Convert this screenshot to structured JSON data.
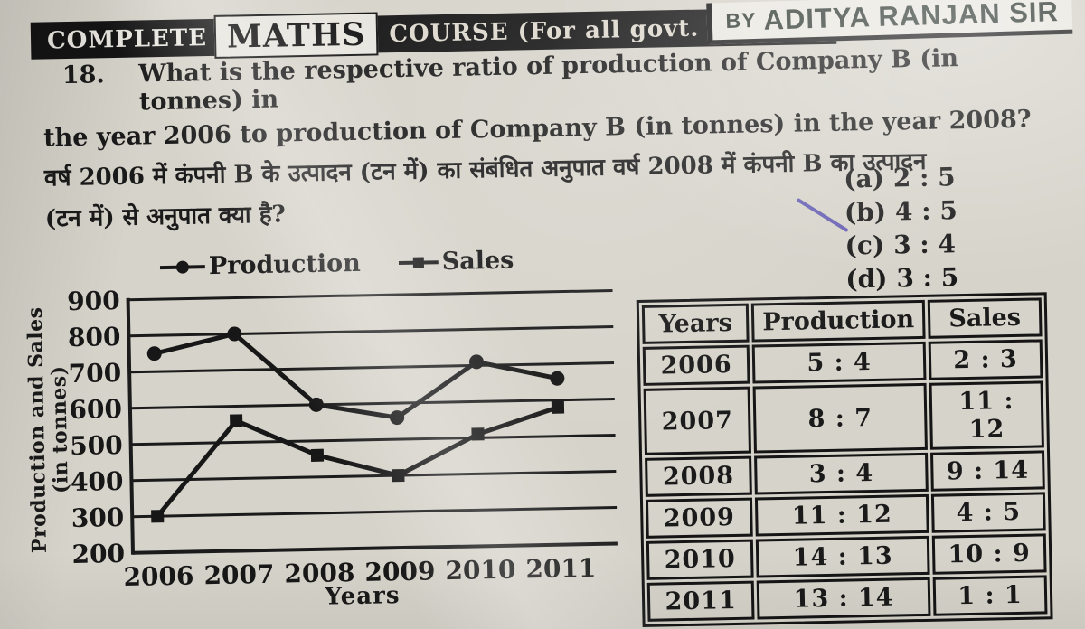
{
  "header": {
    "banner": {
      "segment1": "COMPLETE",
      "segment2": "MATHS",
      "segment3": "COURSE (For all govt. exams )"
    },
    "byline": {
      "prefix": "BY",
      "name": "ADITYA RANJAN SIR"
    }
  },
  "question": {
    "number": "18.",
    "english_line1": "What is the respective ratio of production of Company B (in tonnes) in",
    "english_line2": "the year 2006 to production of Company B (in tonnes) in the year 2008?",
    "hindi_line1": "वर्ष 2006 में कंपनी B के उत्पादन (टन में) का संबंधित अनुपात वर्ष 2008 में कंपनी B का उत्पादन",
    "hindi_line2": "(टन में) से अनुपात क्या है?"
  },
  "options": [
    {
      "label": "(a)",
      "value": "2 : 5"
    },
    {
      "label": "(b)",
      "value": "4 : 5"
    },
    {
      "label": "(c)",
      "value": "3 : 4"
    },
    {
      "label": "(d)",
      "value": "3 : 5"
    }
  ],
  "annotations": {
    "pen_mark": {
      "description": "hand-drawn diagonal pen stroke pointing at option (b)",
      "color": "#5a52b0"
    }
  },
  "chart_data": {
    "type": "line",
    "x": [
      "2006",
      "2007",
      "2008",
      "2009",
      "2010",
      "2011"
    ],
    "series": [
      {
        "name": "Production",
        "marker": "circle",
        "values": [
          750,
          800,
          600,
          560,
          710,
          660
        ]
      },
      {
        "name": "Sales",
        "marker": "square",
        "values": [
          300,
          560,
          460,
          400,
          510,
          580
        ]
      }
    ],
    "xlabel": "Years",
    "ylabel": "Production and Sales (in tonnes)",
    "ylabel_lines": [
      "Production and Sales",
      "(in tonnes)"
    ],
    "ylim": [
      200,
      900
    ],
    "ytick_step": 100,
    "grid": true,
    "legend_position": "top"
  },
  "table": {
    "headers": [
      "Years",
      "Production",
      "Sales"
    ],
    "rows": [
      [
        "2006",
        "5 : 4",
        "2 : 3"
      ],
      [
        "2007",
        "8 : 7",
        "11 : 12"
      ],
      [
        "2008",
        "3 : 4",
        "9 : 14"
      ],
      [
        "2009",
        "11 : 12",
        "4 : 5"
      ],
      [
        "2010",
        "14 : 13",
        "10 : 9"
      ],
      [
        "2011",
        "13 : 14",
        "1 : 1"
      ]
    ]
  },
  "colors": {
    "paper": "#d6d3ca",
    "ink": "#1a1a1a",
    "banner_bg": "#141414",
    "banner_fg": "#e9e7e0",
    "pen_mark": "#5a52b0"
  }
}
